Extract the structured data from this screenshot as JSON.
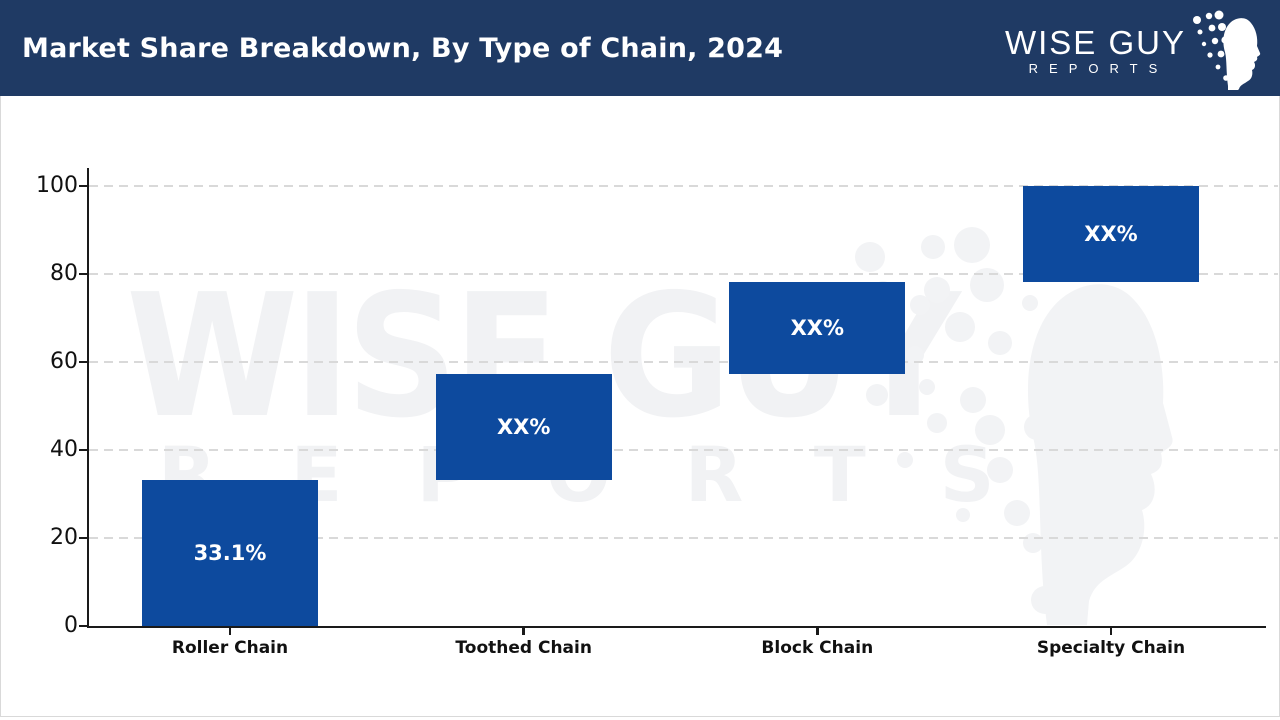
{
  "header": {
    "title": "Market Share Breakdown, By Type of Chain, 2024",
    "bg_color": "#1F3A64",
    "logo": {
      "line1": "WISE GUY",
      "line2": "REPORTS"
    }
  },
  "watermark": {
    "line1": "WISE GUY",
    "line2": "REPORTS"
  },
  "chart_data": {
    "type": "bar",
    "subtype": "waterfall",
    "title": "Market Share Breakdown, By Type of Chain, 2024",
    "categories": [
      "Roller Chain",
      "Toothed Chain",
      "Block Chain",
      "Specialty Chain"
    ],
    "segments": [
      {
        "category": "Roller Chain",
        "start": 0,
        "end": 33.1,
        "label": "33.1%"
      },
      {
        "category": "Toothed Chain",
        "start": 33.1,
        "end": 57.2,
        "label": "XX%"
      },
      {
        "category": "Block Chain",
        "start": 57.2,
        "end": 78.2,
        "label": "XX%"
      },
      {
        "category": "Specialty Chain",
        "start": 78.2,
        "end": 100,
        "label": "XX%"
      }
    ],
    "y_ticks": [
      0,
      20,
      40,
      60,
      80,
      100
    ],
    "ylim": [
      0,
      105
    ],
    "xlabel": "",
    "ylabel": "",
    "bar_color": "#0D4A9E",
    "grid": "horizontal-dashed",
    "legend": "none"
  }
}
